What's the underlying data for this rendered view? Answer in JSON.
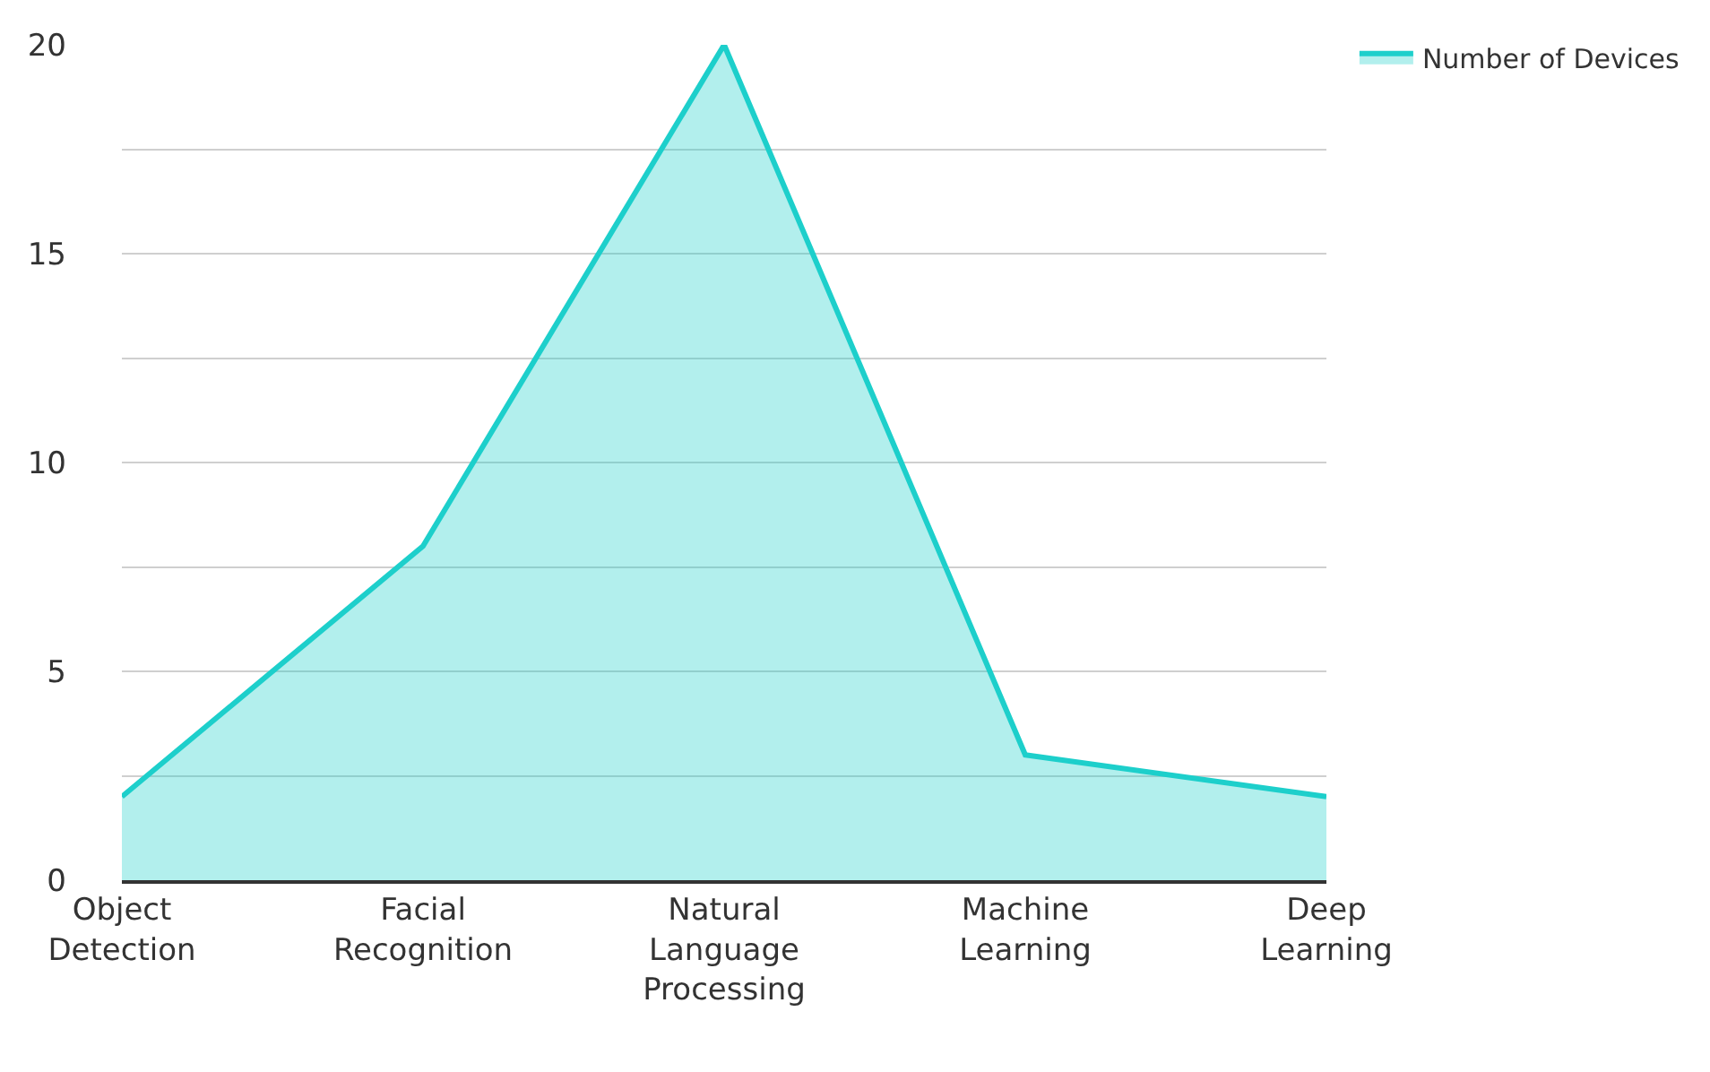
{
  "chart_data": {
    "type": "area",
    "categories": [
      "Object Detection",
      "Facial Recognition",
      "Natural Language Processing",
      "Machine Learning",
      "Deep Learning"
    ],
    "series": [
      {
        "name": "Number of Devices",
        "color": "#1dcfcb",
        "values": [
          2,
          8,
          20,
          3,
          2
        ]
      }
    ],
    "ylim": [
      0,
      20
    ],
    "yticks": [
      0,
      {
        "value": 2.5,
        "label": null
      },
      5,
      {
        "value": 7.5,
        "label": null
      },
      10,
      {
        "value": 12.5,
        "label": null
      },
      15,
      {
        "value": 17.5,
        "label": null
      },
      20
    ],
    "grid": "y",
    "legend": "top right",
    "marker": "none",
    "line_style": "solid"
  }
}
